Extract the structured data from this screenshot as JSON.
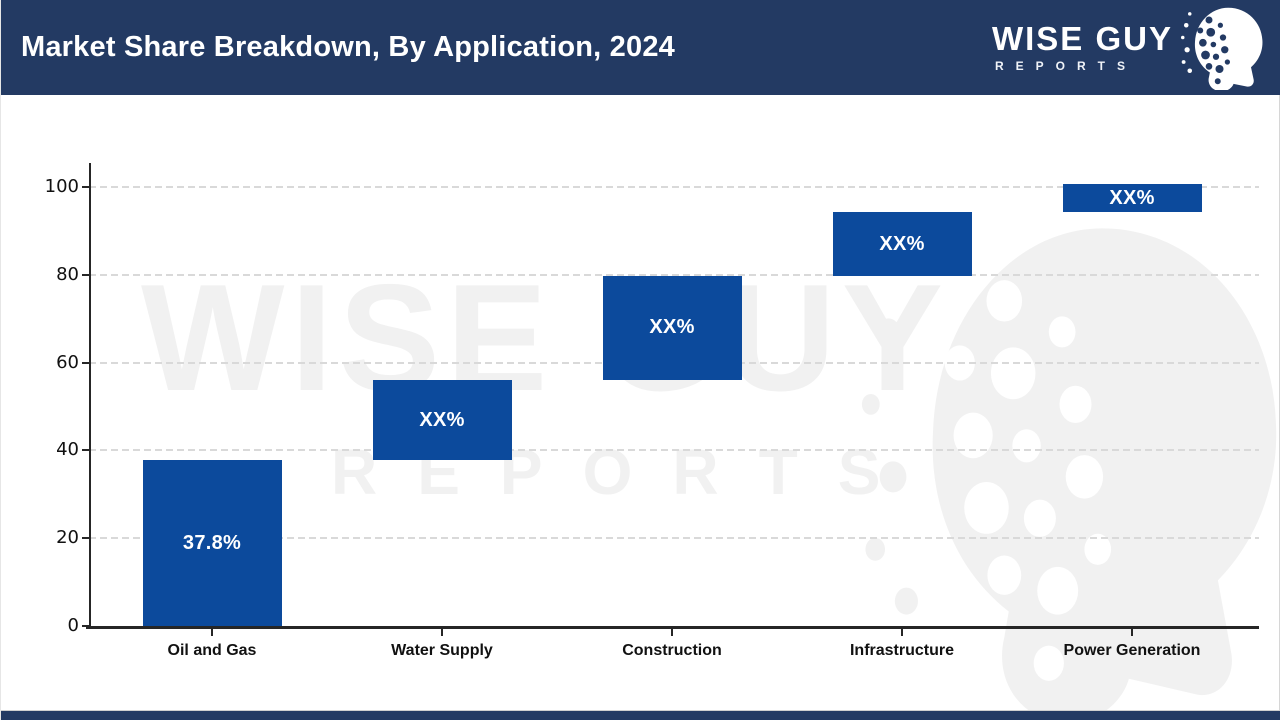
{
  "header": {
    "title": "Market Share Breakdown, By Application, 2024",
    "logo": {
      "line1": "WISE GUY",
      "line2": "REPORTS"
    }
  },
  "watermark": {
    "line1": "WISE GUY",
    "line2": "REPORTS"
  },
  "chart_data": {
    "type": "bar",
    "subtype": "waterfall",
    "title": "Market Share Breakdown, By Application, 2024",
    "xlabel": "",
    "ylabel": "",
    "categories": [
      "Oil and Gas",
      "Water Supply",
      "Construction",
      "Infrastructure",
      "Power Generation"
    ],
    "segments": [
      {
        "category": "Oil and Gas",
        "start": 0,
        "end": 37.8,
        "label": "37.8%"
      },
      {
        "category": "Water Supply",
        "start": 37.8,
        "end": 56.0,
        "label": "XX%"
      },
      {
        "category": "Construction",
        "start": 56.0,
        "end": 79.8,
        "label": "XX%"
      },
      {
        "category": "Infrastructure",
        "start": 79.8,
        "end": 94.2,
        "label": "XX%"
      },
      {
        "category": "Power Generation",
        "start": 94.2,
        "end": 100.6,
        "label": "XX%"
      }
    ],
    "yticks": [
      0,
      20,
      40,
      60,
      80,
      100
    ],
    "ylim": [
      0,
      105
    ],
    "grid": "horizontal-dashed",
    "legend": "none",
    "bar_color": "#0c4a9c",
    "bar_label_color": "#ffffff"
  },
  "colors": {
    "header_bg": "#233a63",
    "footer_bg": "#233a63",
    "bar": "#0c4a9c",
    "gridline": "#d9d9d9",
    "axis": "#262626",
    "watermark": "#f1f1f1"
  }
}
